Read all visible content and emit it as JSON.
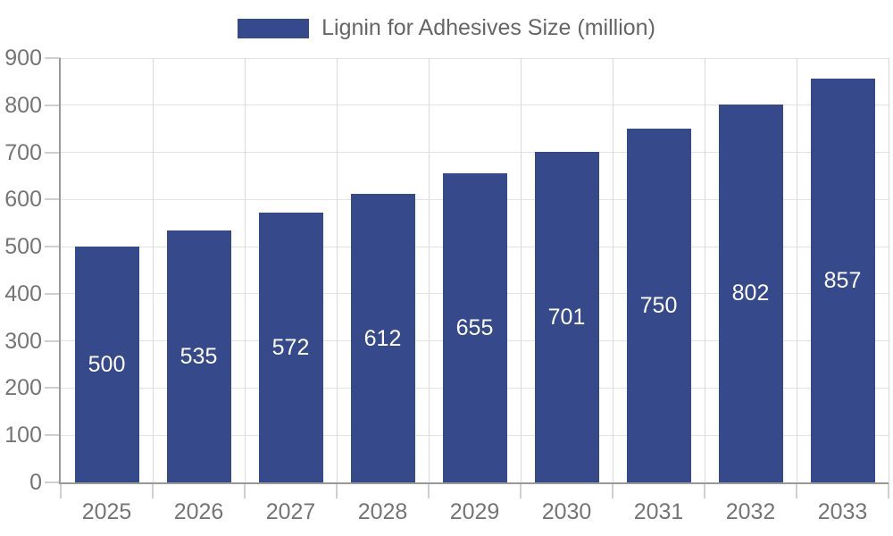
{
  "legend": {
    "label": "Lignin for Adhesives Size (million)"
  },
  "chart_data": {
    "type": "bar",
    "title": "",
    "xlabel": "",
    "ylabel": "",
    "categories": [
      "2025",
      "2026",
      "2027",
      "2028",
      "2029",
      "2030",
      "2031",
      "2032",
      "2033"
    ],
    "series": [
      {
        "name": "Lignin for Adhesives Size (million)",
        "values": [
          500,
          535,
          572,
          612,
          655,
          701,
          750,
          802,
          857
        ]
      }
    ],
    "ylim": [
      0,
      900
    ],
    "yticks": [
      0,
      100,
      200,
      300,
      400,
      500,
      600,
      700,
      800,
      900
    ],
    "grid": true,
    "legend_position": "top-center",
    "value_labels": "inside-center",
    "colors": {
      "bar": "#35498B",
      "value_label": "#FFFFFF",
      "axis_text": "#757575",
      "legend_text": "#666666",
      "axis_line": "#999999",
      "tick_line": "#CFCFD4",
      "grid_h": "#E3E3E7",
      "grid_v": "#D9D9DD",
      "background": "#FFFFFF"
    }
  }
}
